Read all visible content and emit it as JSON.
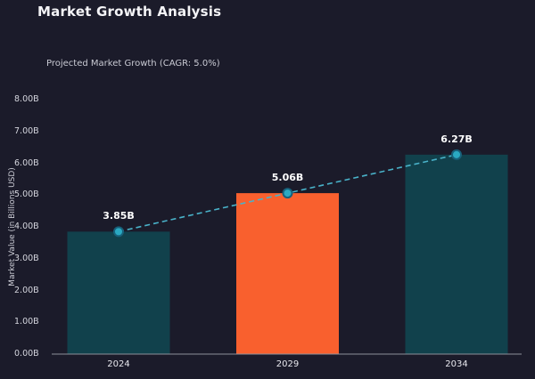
{
  "header": {
    "title": "Market Growth Analysis"
  },
  "chart_data": {
    "type": "bar",
    "title": "Market Growth Analysis",
    "subtitle": "Projected Market Growth (CAGR: 5.0%)",
    "categories": [
      "2024",
      "2029",
      "2034"
    ],
    "values": [
      3.85,
      5.06,
      6.27
    ],
    "bar_labels": [
      "3.85B",
      "5.06B",
      "6.27B"
    ],
    "bar_colors": [
      "#11414c",
      "#f9602e",
      "#11414c"
    ],
    "trend_line": {
      "name": "projected-growth-trend",
      "values": [
        3.85,
        5.06,
        6.27
      ],
      "style": "dashed",
      "color": "#49b2c9",
      "marker_fill": "#2aa9c2",
      "marker_stroke": "#17607a"
    },
    "xlabel": "",
    "ylabel": "Market Value (in Billions USD)",
    "ylim": [
      0,
      8
    ],
    "ytick_step": 1,
    "yticks": [
      "0.00B",
      "1.00B",
      "2.00B",
      "3.00B",
      "4.00B",
      "5.00B",
      "6.00B",
      "7.00B",
      "8.00B"
    ],
    "grid": false,
    "legend": false,
    "background": "#1b1b2a",
    "axis_line_color": "#8e9099"
  }
}
